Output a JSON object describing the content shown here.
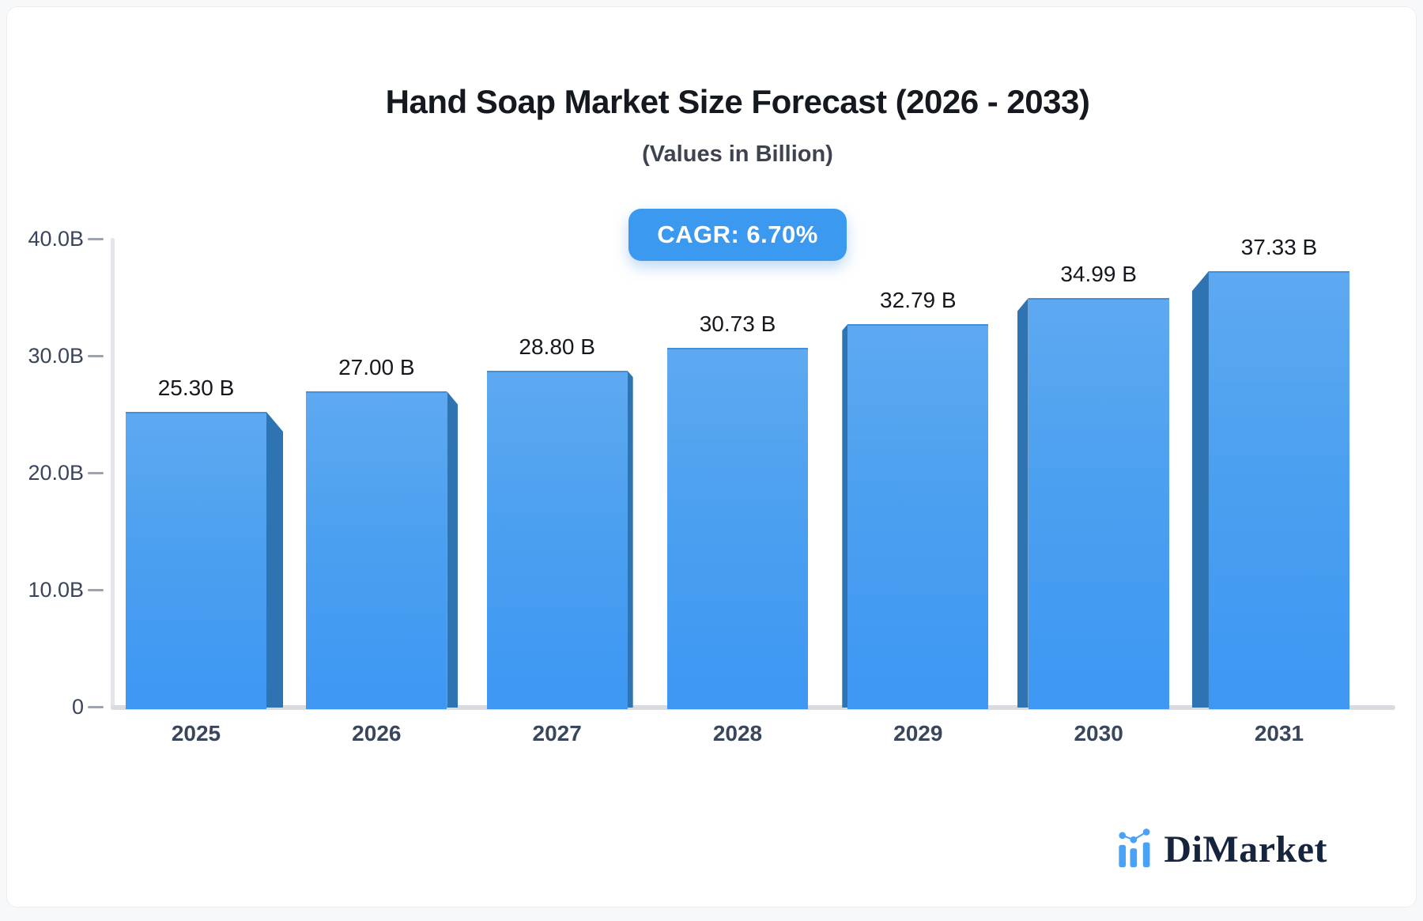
{
  "header": {
    "title": "Hand Soap Market Size Forecast (2026 - 2033)",
    "subtitle": "(Values in Billion)"
  },
  "badge": {
    "label": "CAGR: 6.70%",
    "background": "#3b99ef",
    "text_color": "#ffffff"
  },
  "chart_data": {
    "type": "bar",
    "title": "Hand Soap Market Size Forecast (2026 - 2033)",
    "subtitle": "(Values in Billion)",
    "categories": [
      "2025",
      "2026",
      "2027",
      "2028",
      "2029",
      "2030",
      "2031"
    ],
    "values": [
      25.3,
      27.0,
      28.8,
      30.73,
      32.79,
      34.99,
      37.33
    ],
    "data_labels": [
      "25.30 B",
      "27.00 B",
      "28.80 B",
      "30.73 B",
      "32.79 B",
      "34.99 B",
      "37.33 B"
    ],
    "xlabel": "",
    "ylabel": "",
    "ylim": [
      0,
      40
    ],
    "yticks": [
      {
        "value": 0,
        "label": "0"
      },
      {
        "value": 10,
        "label": "10.0B"
      },
      {
        "value": 20,
        "label": "20.0B"
      },
      {
        "value": 30,
        "label": "30.0B"
      },
      {
        "value": 40,
        "label": "40.0B"
      }
    ],
    "grid": false,
    "legend": false,
    "bar_style": "3d-extruded-toward-center",
    "colors": {
      "bar_face_top": "#5ea9f1",
      "bar_face_bottom": "#3d97f3",
      "bar_side": "#2e73b2",
      "axis_line": "#e2e5e9",
      "baseline": "#d8dce0",
      "tick_mark": "#9aa3ae",
      "axis_text": "#3b4559",
      "value_text": "#15181e"
    }
  },
  "branding": {
    "name": "DiMarket",
    "icon": "bar-chart-dots-logo",
    "text_color": "#16243e",
    "icon_color": "#4aa2f7"
  }
}
